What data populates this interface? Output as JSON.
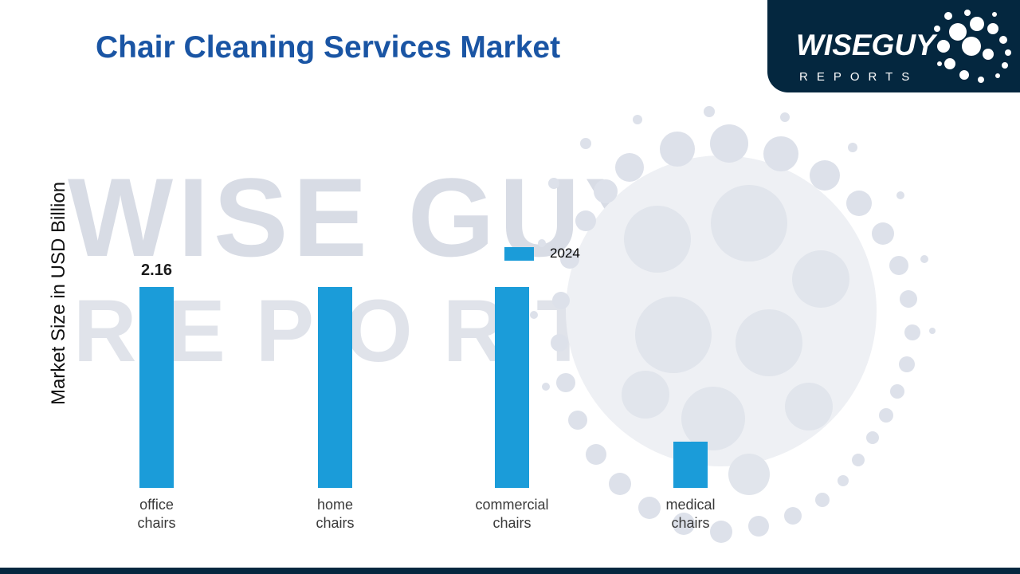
{
  "header": {
    "title": "Chair Cleaning Services Market"
  },
  "logo": {
    "name": "WISEGUY",
    "subtitle": "REPORTS"
  },
  "watermark": {
    "line1": "WISE GUY",
    "line2": "REPORTS"
  },
  "colors": {
    "accent_navy": "#04273f",
    "title_blue": "#1a55a4",
    "bar_blue": "#1b9cd9"
  },
  "chart_data": {
    "type": "bar",
    "title": "Chair Cleaning Services Market",
    "ylabel": "Market Size in USD Billion",
    "categories": [
      "office chairs",
      "home chairs",
      "commercial chairs",
      "medical chairs"
    ],
    "series": [
      {
        "name": "2024",
        "values": [
          2.16,
          2.16,
          2.16,
          0.5
        ]
      }
    ],
    "value_labels": [
      "2.16",
      "",
      "",
      ""
    ],
    "legend": [
      "2024"
    ],
    "legend_position": "top-center",
    "bar_color": "#1b9cd9",
    "ylim": [
      0,
      2.4
    ],
    "grid": false
  }
}
